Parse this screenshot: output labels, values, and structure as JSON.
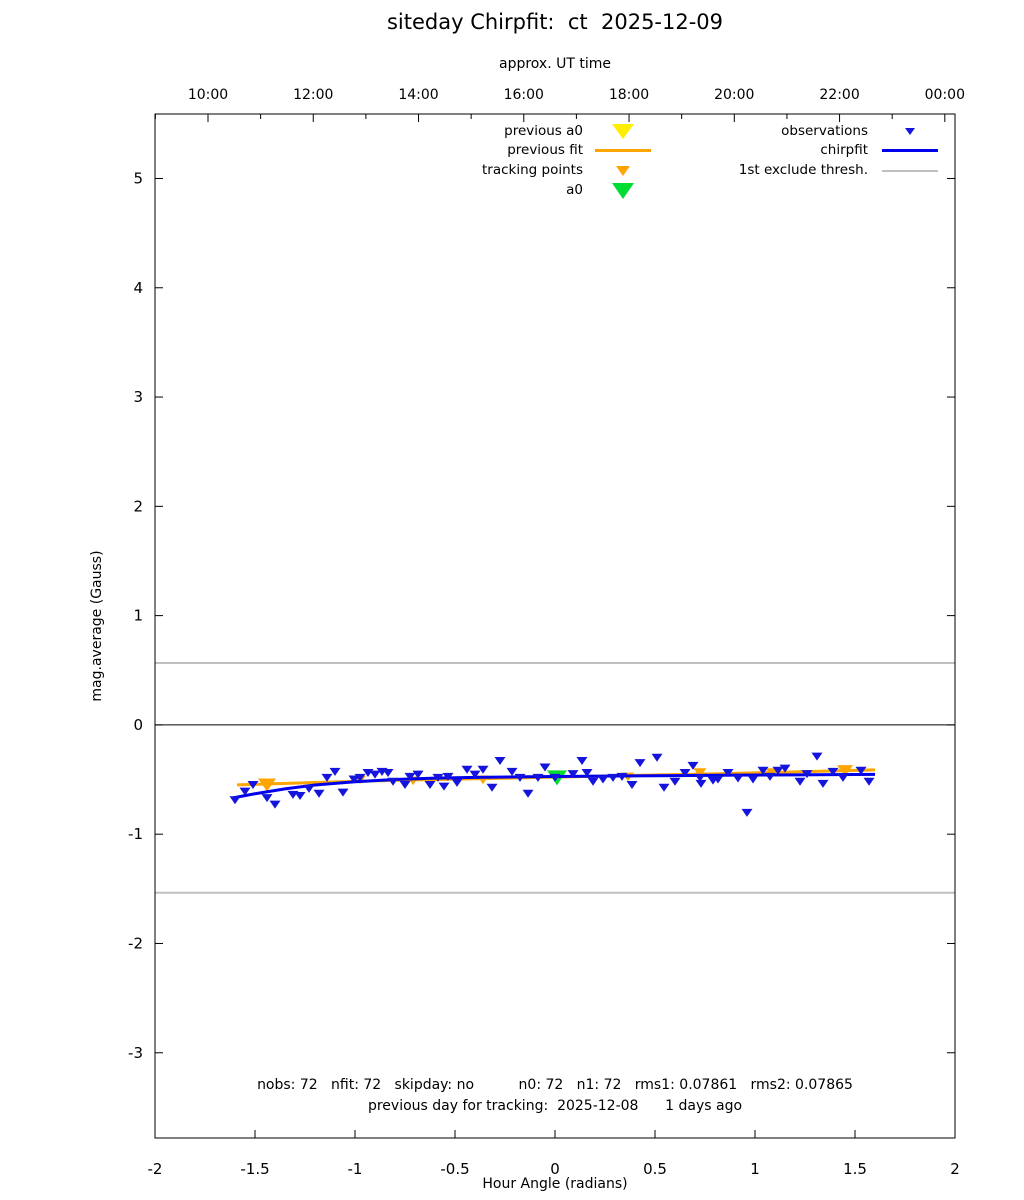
{
  "title": "siteday Chirpfit:  ct  2025-12-09",
  "top_axis": {
    "label": "approx. UT time",
    "tick_labels": [
      "10:00",
      "12:00",
      "14:00",
      "16:00",
      "18:00",
      "20:00",
      "22:00",
      "00:00"
    ],
    "labeled_hours": [
      10,
      12,
      14,
      16,
      18,
      20,
      22,
      24
    ],
    "minor_hours": [
      9,
      11,
      13,
      15,
      17,
      19,
      21,
      23
    ]
  },
  "x_axis": {
    "label": "Hour Angle (radians)",
    "ticks": [
      -2,
      -1.5,
      -1,
      -0.5,
      0,
      0.5,
      1,
      1.5,
      2
    ],
    "tick_labels": [
      "-2",
      "-1.5",
      "-1",
      "-0.5",
      "0",
      "0.5",
      "1",
      "1.5",
      "2"
    ],
    "min": -2,
    "max": 2
  },
  "y_axis": {
    "label": "mag.average (Gauss)",
    "ticks": [
      -3,
      -2,
      -1,
      0,
      1,
      2,
      3,
      4,
      5
    ],
    "tick_labels": [
      "-3",
      "-2",
      "-1",
      "0",
      "1",
      "2",
      "3",
      "4",
      "5"
    ],
    "min": -3.78,
    "max": 5.59
  },
  "legend": {
    "left": [
      {
        "label": "previous a0",
        "marker": "big-triangle",
        "color": "#ffee00"
      },
      {
        "label": "previous fit",
        "marker": "line",
        "color": "#ffa500"
      },
      {
        "label": "tracking points",
        "marker": "small-triangle",
        "color": "#ffa500"
      },
      {
        "label": "a0",
        "marker": "big-triangle",
        "color": "#00dc32"
      }
    ],
    "right": [
      {
        "label": "observations",
        "marker": "tiny-triangle",
        "color": "#1414dd"
      },
      {
        "label": "chirpfit",
        "marker": "line",
        "color": "#0000ee"
      },
      {
        "label": "1st exclude thresh.",
        "marker": "line",
        "color": "#c0c0c0"
      }
    ]
  },
  "stats": {
    "line1": "nobs: 72   nfit: 72   skipday: no          n0: 72   n1: 72   rms1: 0.07861   rms2: 0.07865",
    "line2": "previous day for tracking:  2025-12-08      1 days ago"
  },
  "colors": {
    "observations": "#1414dd",
    "chirpfit": "#0000ee",
    "previous_fit": "#ffa500",
    "tracking_points": "#ffa500",
    "previous_a0": "#ffee00",
    "a0": "#00dc32",
    "threshold": "#c0c0c0",
    "zero_line": "#000000",
    "axis": "#000000"
  },
  "chart_data": {
    "type": "scatter",
    "title": "siteday Chirpfit:  ct  2025-12-09",
    "xlabel": "Hour Angle (radians)",
    "ylabel": "mag.average (Gauss)",
    "x2label": "approx. UT time",
    "xlim": [
      -2,
      2
    ],
    "ylim": [
      -3.78,
      5.59
    ],
    "grid": false,
    "legend_position": "top-center-inside",
    "zero_line_y": 0,
    "exclude_thresholds": [
      0.567,
      -1.536
    ],
    "observations": [
      [
        -1.6,
        -0.69
      ],
      [
        -1.55,
        -0.61
      ],
      [
        -1.51,
        -0.55
      ],
      [
        -1.44,
        -0.67
      ],
      [
        -1.4,
        -0.73
      ],
      [
        -1.31,
        -0.64
      ],
      [
        -1.275,
        -0.65
      ],
      [
        -1.23,
        -0.585
      ],
      [
        -1.18,
        -0.63
      ],
      [
        -1.14,
        -0.485
      ],
      [
        -1.1,
        -0.43
      ],
      [
        -1.06,
        -0.62
      ],
      [
        -1.005,
        -0.5
      ],
      [
        -0.975,
        -0.485
      ],
      [
        -0.935,
        -0.44
      ],
      [
        -0.9,
        -0.455
      ],
      [
        -0.865,
        -0.43
      ],
      [
        -0.835,
        -0.44
      ],
      [
        -0.81,
        -0.52
      ],
      [
        -0.75,
        -0.55
      ],
      [
        -0.725,
        -0.475
      ],
      [
        -0.685,
        -0.455
      ],
      [
        -0.625,
        -0.55
      ],
      [
        -0.585,
        -0.485
      ],
      [
        -0.555,
        -0.565
      ],
      [
        -0.535,
        -0.475
      ],
      [
        -0.49,
        -0.53
      ],
      [
        -0.44,
        -0.41
      ],
      [
        -0.4,
        -0.455
      ],
      [
        -0.36,
        -0.41
      ],
      [
        -0.315,
        -0.575
      ],
      [
        -0.275,
        -0.33
      ],
      [
        -0.215,
        -0.43
      ],
      [
        -0.175,
        -0.485
      ],
      [
        -0.135,
        -0.63
      ],
      [
        -0.085,
        -0.485
      ],
      [
        -0.05,
        -0.39
      ],
      [
        0.0,
        -0.485
      ],
      [
        0.09,
        -0.45
      ],
      [
        0.135,
        -0.33
      ],
      [
        0.16,
        -0.44
      ],
      [
        0.19,
        -0.52
      ],
      [
        0.24,
        -0.5
      ],
      [
        0.29,
        -0.485
      ],
      [
        0.335,
        -0.475
      ],
      [
        0.385,
        -0.55
      ],
      [
        0.425,
        -0.35
      ],
      [
        0.51,
        -0.3
      ],
      [
        0.545,
        -0.575
      ],
      [
        0.6,
        -0.52
      ],
      [
        0.65,
        -0.44
      ],
      [
        0.69,
        -0.375
      ],
      [
        0.725,
        -0.485
      ],
      [
        0.73,
        -0.54
      ],
      [
        0.79,
        -0.51
      ],
      [
        0.815,
        -0.5
      ],
      [
        0.865,
        -0.44
      ],
      [
        0.915,
        -0.49
      ],
      [
        0.96,
        -0.805
      ],
      [
        0.99,
        -0.5
      ],
      [
        1.04,
        -0.42
      ],
      [
        1.075,
        -0.475
      ],
      [
        1.115,
        -0.42
      ],
      [
        1.15,
        -0.4
      ],
      [
        1.225,
        -0.52
      ],
      [
        1.26,
        -0.45
      ],
      [
        1.31,
        -0.29
      ],
      [
        1.34,
        -0.54
      ],
      [
        1.39,
        -0.43
      ],
      [
        1.44,
        -0.485
      ],
      [
        1.53,
        -0.42
      ],
      [
        1.57,
        -0.52
      ]
    ],
    "tracking_points": [
      {
        "x": -1.44,
        "y": -0.55,
        "w": 18
      },
      {
        "x": -0.975,
        "y": -0.503,
        "w": 12
      },
      {
        "x": -0.71,
        "y": -0.512,
        "w": 12
      },
      {
        "x": -0.36,
        "y": -0.503,
        "w": 12
      },
      {
        "x": 0.365,
        "y": -0.476,
        "w": 12
      },
      {
        "x": 0.725,
        "y": -0.44,
        "w": 13
      },
      {
        "x": 1.085,
        "y": -0.44,
        "w": 13
      },
      {
        "x": 1.45,
        "y": -0.421,
        "w": 16
      }
    ],
    "a0_point": {
      "x": 0.01,
      "y": -0.485
    },
    "previous_fit": [
      [
        -1.59,
        -0.549
      ],
      [
        -1.2,
        -0.527
      ],
      [
        -0.8,
        -0.507
      ],
      [
        -0.4,
        -0.493
      ],
      [
        0,
        -0.478
      ],
      [
        0.4,
        -0.462
      ],
      [
        0.8,
        -0.448
      ],
      [
        1.2,
        -0.43
      ],
      [
        1.6,
        -0.412
      ]
    ],
    "chirpfit": [
      [
        -1.61,
        -0.668
      ],
      [
        -1.5,
        -0.63
      ],
      [
        -1.35,
        -0.585
      ],
      [
        -1.2,
        -0.55
      ],
      [
        -1.0,
        -0.52
      ],
      [
        -0.8,
        -0.5
      ],
      [
        -0.6,
        -0.487
      ],
      [
        -0.4,
        -0.48
      ],
      [
        -0.2,
        -0.476
      ],
      [
        0.0,
        -0.472
      ],
      [
        0.3,
        -0.468
      ],
      [
        0.6,
        -0.464
      ],
      [
        0.9,
        -0.46
      ],
      [
        1.2,
        -0.457
      ],
      [
        1.6,
        -0.453
      ]
    ],
    "stats": {
      "nobs": 72,
      "nfit": 72,
      "skipday": "no",
      "n0": 72,
      "n1": 72,
      "rms1": 0.07861,
      "rms2": 0.07865,
      "previous_day_for_tracking": "2025-12-08",
      "days_ago": 1
    }
  }
}
